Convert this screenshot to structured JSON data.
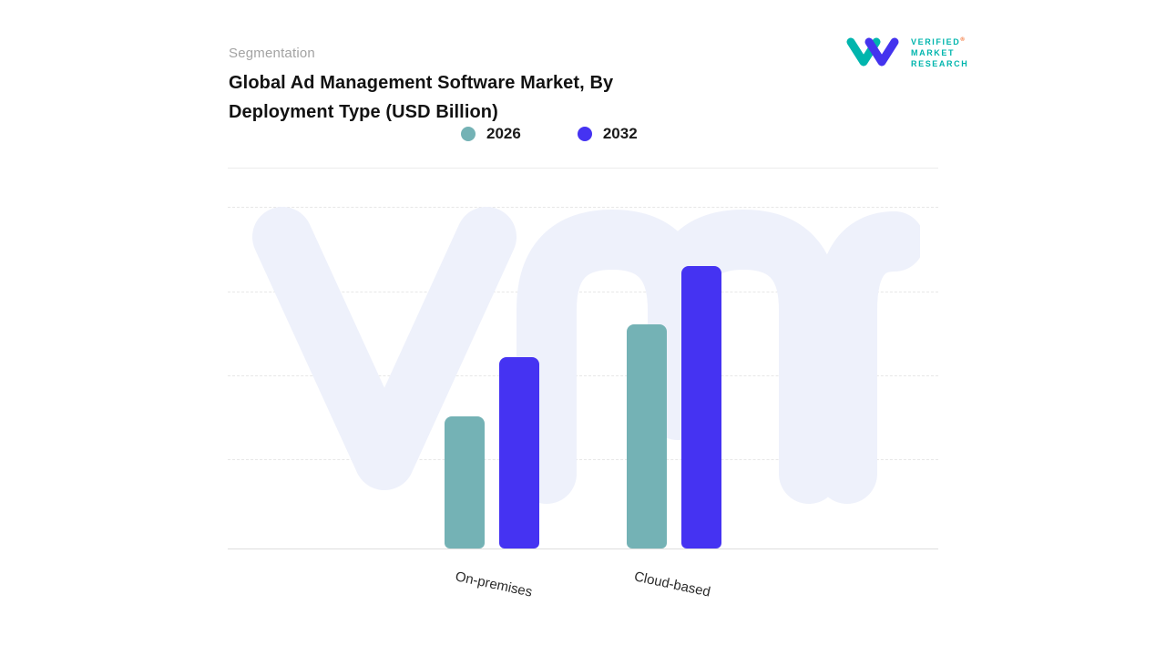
{
  "header": {
    "eyebrow": "Segmentation",
    "title_lines": [
      "Global Ad Management Software Market, By",
      "Deployment Type (USD Billion)"
    ]
  },
  "logo": {
    "name": "Verified Market Research",
    "lines": [
      "VERIFIED",
      "MARKET",
      "RESEARCH"
    ],
    "registered_mark": "®",
    "colors": {
      "teal": "#00b5ad",
      "indigo": "#4433ee",
      "accent": "#f26522"
    }
  },
  "legend": [
    {
      "label": "2026",
      "color": "#74b2b5"
    },
    {
      "label": "2032",
      "color": "#4533f2"
    }
  ],
  "watermark": {
    "text": "vmr",
    "color": "#eef1fb"
  },
  "chart_data": {
    "type": "bar",
    "title": "Global Ad Management Software Market, By Deployment Type (USD Billion)",
    "categories": [
      "On-premises",
      "Cloud-based"
    ],
    "series": [
      {
        "name": "2026",
        "color": "#74b2b5",
        "values": [
          38.6,
          65.4
        ]
      },
      {
        "name": "2032",
        "color": "#4533f2",
        "values": [
          55.9,
          82.4
        ]
      }
    ],
    "xlabel": "",
    "ylabel": "",
    "ylim": [
      0,
      100
    ],
    "value_note": "no numeric axis shown; values are relative bar heights in percent of plot height",
    "grid": "horizontal-dashed",
    "legend_position": "top-center"
  }
}
